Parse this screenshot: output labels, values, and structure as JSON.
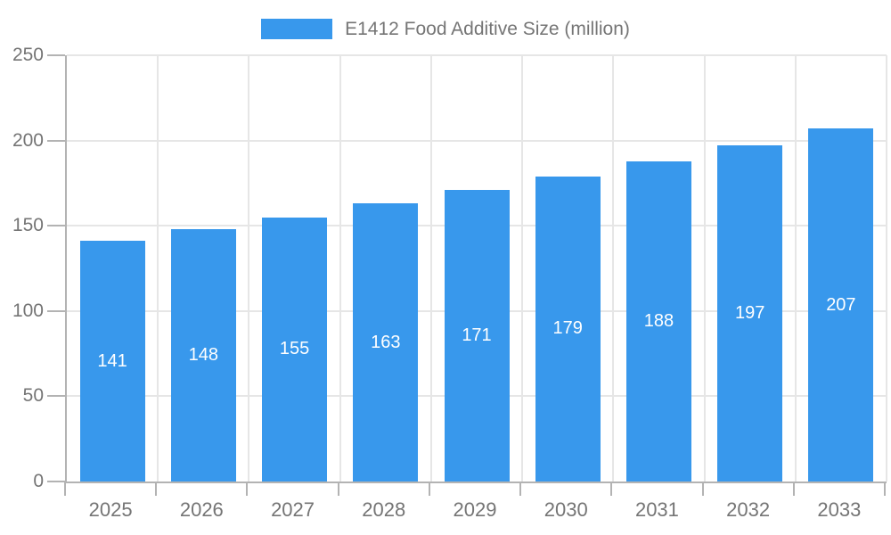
{
  "chart_data": {
    "type": "bar",
    "title": "E1412 Food Additive Size (million)",
    "categories": [
      "2025",
      "2026",
      "2027",
      "2028",
      "2029",
      "2030",
      "2031",
      "2032",
      "2033"
    ],
    "series": [
      {
        "name": "E1412 Food Additive Size (million)",
        "values": [
          141,
          148,
          155,
          163,
          171,
          179,
          188,
          197,
          207
        ]
      }
    ],
    "xlabel": "",
    "ylabel": "",
    "ylim": [
      0,
      250
    ],
    "y_ticks": [
      0,
      50,
      100,
      150,
      200,
      250
    ],
    "grid": "on",
    "legend_position": "top-center",
    "value_labels": "inside-center"
  },
  "legend": {
    "label": "E1412 Food Additive Size (million)"
  },
  "colors": {
    "bar": "#3898ec",
    "text": "#757575",
    "axis": "#b3b3b3",
    "grid": "#e6e6e6",
    "value_label": "#ffffff"
  }
}
